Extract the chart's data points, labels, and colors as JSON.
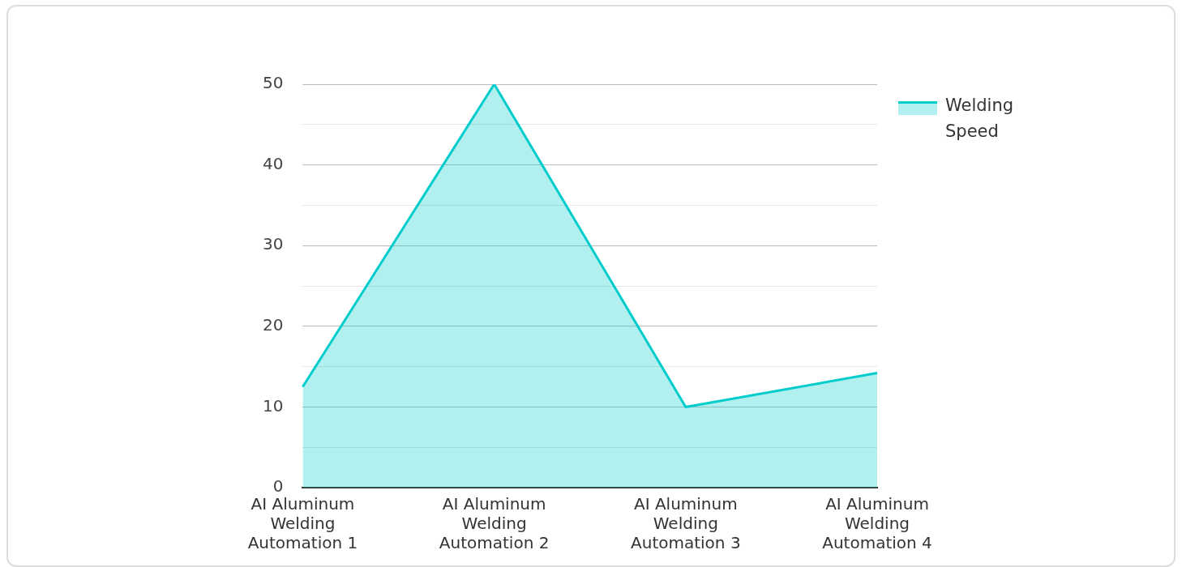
{
  "chart_data": {
    "type": "area",
    "categories": [
      "AI Aluminum Welding Automation 1",
      "AI Aluminum Welding Automation 2",
      "AI Aluminum Welding Automation 3",
      "AI Aluminum Welding Automation 4"
    ],
    "series": [
      {
        "name": "Welding Speed",
        "color": "#00cccc",
        "values": [
          12.5,
          50,
          10,
          14.2
        ]
      }
    ],
    "ylim": [
      0,
      50
    ],
    "yticks": [
      0,
      {
        "value": 5,
        "label": null
      },
      10,
      {
        "value": 15,
        "label": null
      },
      20,
      {
        "value": 25,
        "label": null
      },
      30,
      {
        "value": 35,
        "label": null
      },
      40,
      {
        "value": 45,
        "label": null
      },
      50
    ],
    "grid": "y",
    "legend": "top right",
    "marker": "none",
    "line_style": "solid"
  }
}
